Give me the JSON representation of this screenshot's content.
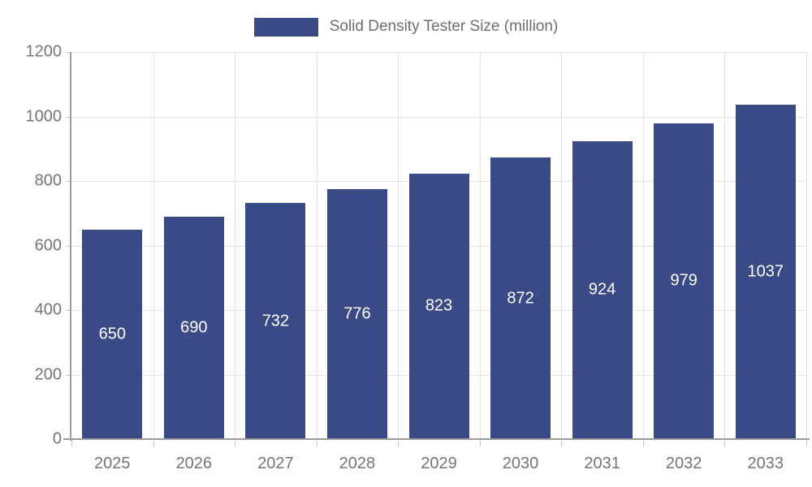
{
  "chart_data": {
    "type": "bar",
    "series_name": "Solid Density Tester Size (million)",
    "categories": [
      "2025",
      "2026",
      "2027",
      "2028",
      "2029",
      "2030",
      "2031",
      "2032",
      "2033"
    ],
    "values": [
      650,
      690,
      732,
      776,
      823,
      872,
      924,
      979,
      1037
    ],
    "title": "",
    "xlabel": "",
    "ylabel": "",
    "ylim": [
      0,
      1200
    ],
    "ytick_step": 200,
    "ytick_labels": [
      "0",
      "200",
      "400",
      "600",
      "800",
      "1000",
      "1200"
    ],
    "grid": true,
    "legend_position": "top-center",
    "show_value_labels": true,
    "colors": {
      "bar": "#394a86",
      "value_label": "#ffffff",
      "axis": "#9c9c9c",
      "gridline": "#e3e3e3",
      "tick_mark": "#c6c6c6",
      "tick_label": "#757575",
      "legend_text": "#6e6e6e",
      "background": "#ffffff"
    }
  }
}
